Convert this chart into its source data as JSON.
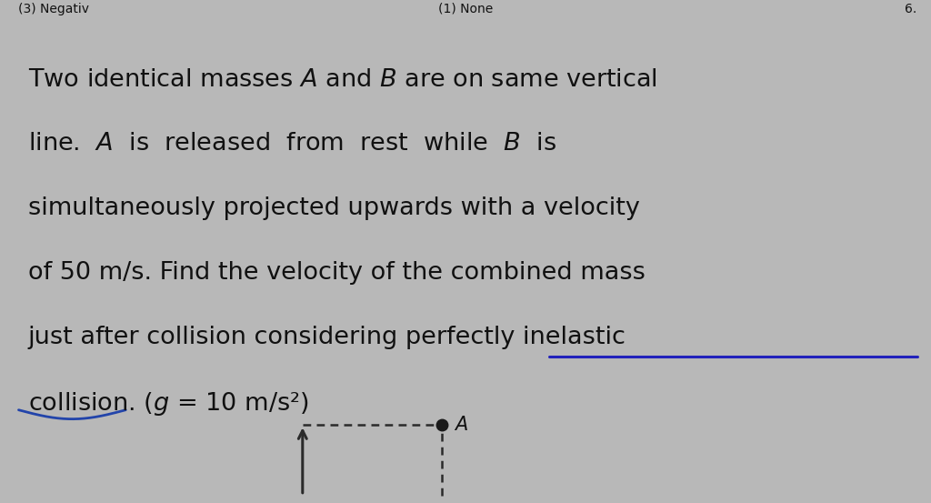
{
  "background_color": "#b8b8b8",
  "top_text_left": "(3) Negativ",
  "top_text_center": "(1) None",
  "top_text_right": "6.",
  "line1": "Two identical masses $\\mathit{A}$ and $\\mathit{B}$ are on same vertical",
  "line2": "line.  $\\mathit{A}$  is  released  from  rest  while  $\\mathit{B}$  is",
  "line3": "simultaneously projected upwards with a velocity",
  "line4": "of 50 m/s. Find the velocity of the combined mass",
  "line5": "just after collision considering perfectly inelastic",
  "line6": "collision. ($g$ = 10 m/s²)",
  "underline_color": "#2222bb",
  "squiggle_color": "#2244aa",
  "text_color": "#111111",
  "dark_text": "#1a1a1a"
}
